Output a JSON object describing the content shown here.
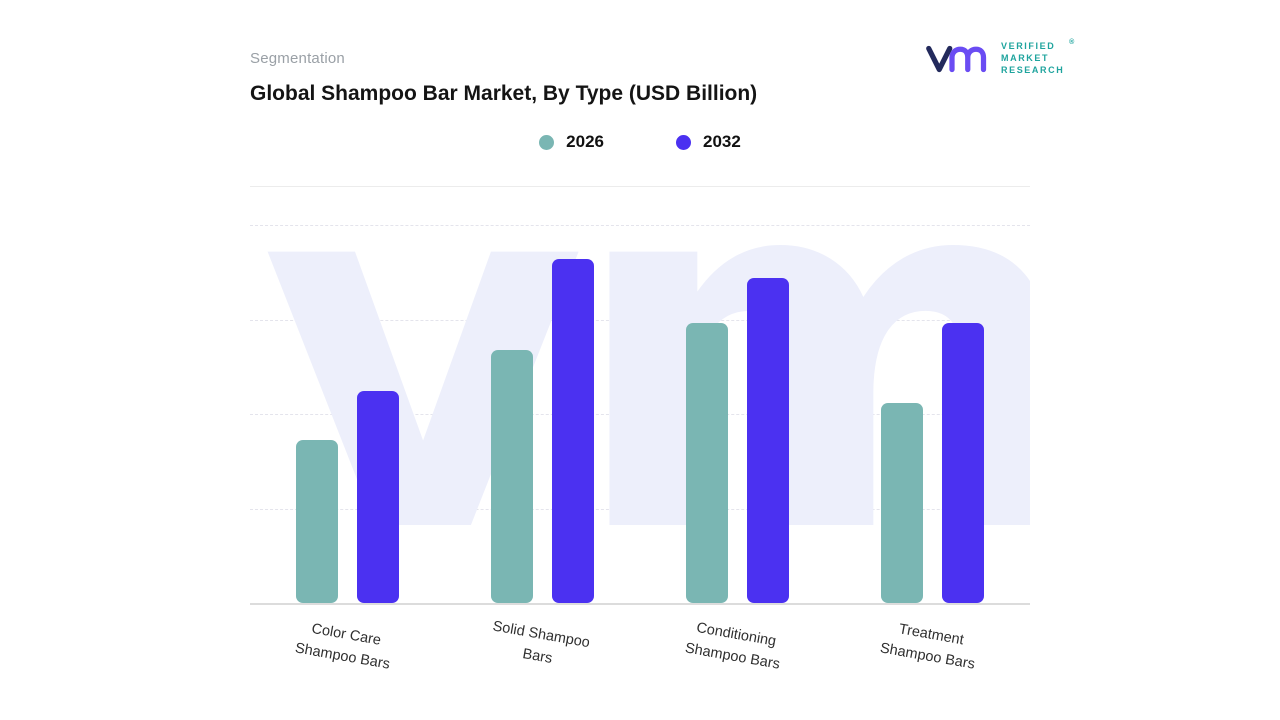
{
  "header": {
    "eyebrow": "Segmentation",
    "title": "Global Shampoo Bar Market, By Type (USD Billion)"
  },
  "brand": {
    "name_lines": [
      "VERIFIED",
      "MARKET",
      "RESEARCH"
    ],
    "registered_mark": "®",
    "colors": {
      "mark_v": "#232a5c",
      "mark_m": "#6a4cf3",
      "text": "#1fa49e"
    }
  },
  "legend": {
    "items": [
      {
        "label": "2026",
        "color": "#7ab6b3"
      },
      {
        "label": "2032",
        "color": "#4b31f1"
      }
    ]
  },
  "watermark": {
    "text": "vm",
    "color": "#edeffb"
  },
  "chart_data": {
    "type": "bar",
    "title": "Global Shampoo Bar Market, By Type (USD Billion)",
    "unit": "USD Billion",
    "categories": [
      "Color Care Shampoo Bars",
      "Solid Shampoo Bars",
      "Conditioning Shampoo Bars",
      "Treatment Shampoo Bars"
    ],
    "categories_display": [
      [
        "Color Care",
        "Shampoo Bars"
      ],
      [
        "Solid Shampoo",
        "Bars"
      ],
      [
        "Conditioning",
        "Shampoo Bars"
      ],
      [
        "Treatment",
        "Shampoo Bars"
      ]
    ],
    "series": [
      {
        "name": "2026",
        "color": "#7ab6b3",
        "values": [
          43,
          67,
          74,
          53
        ]
      },
      {
        "name": "2032",
        "color": "#4b31f1",
        "values": [
          56,
          91,
          86,
          74
        ]
      }
    ],
    "ylim": [
      0,
      100
    ],
    "value_axis_visible": false,
    "grid": "horizontal-dashed",
    "legend_position": "top-center"
  }
}
